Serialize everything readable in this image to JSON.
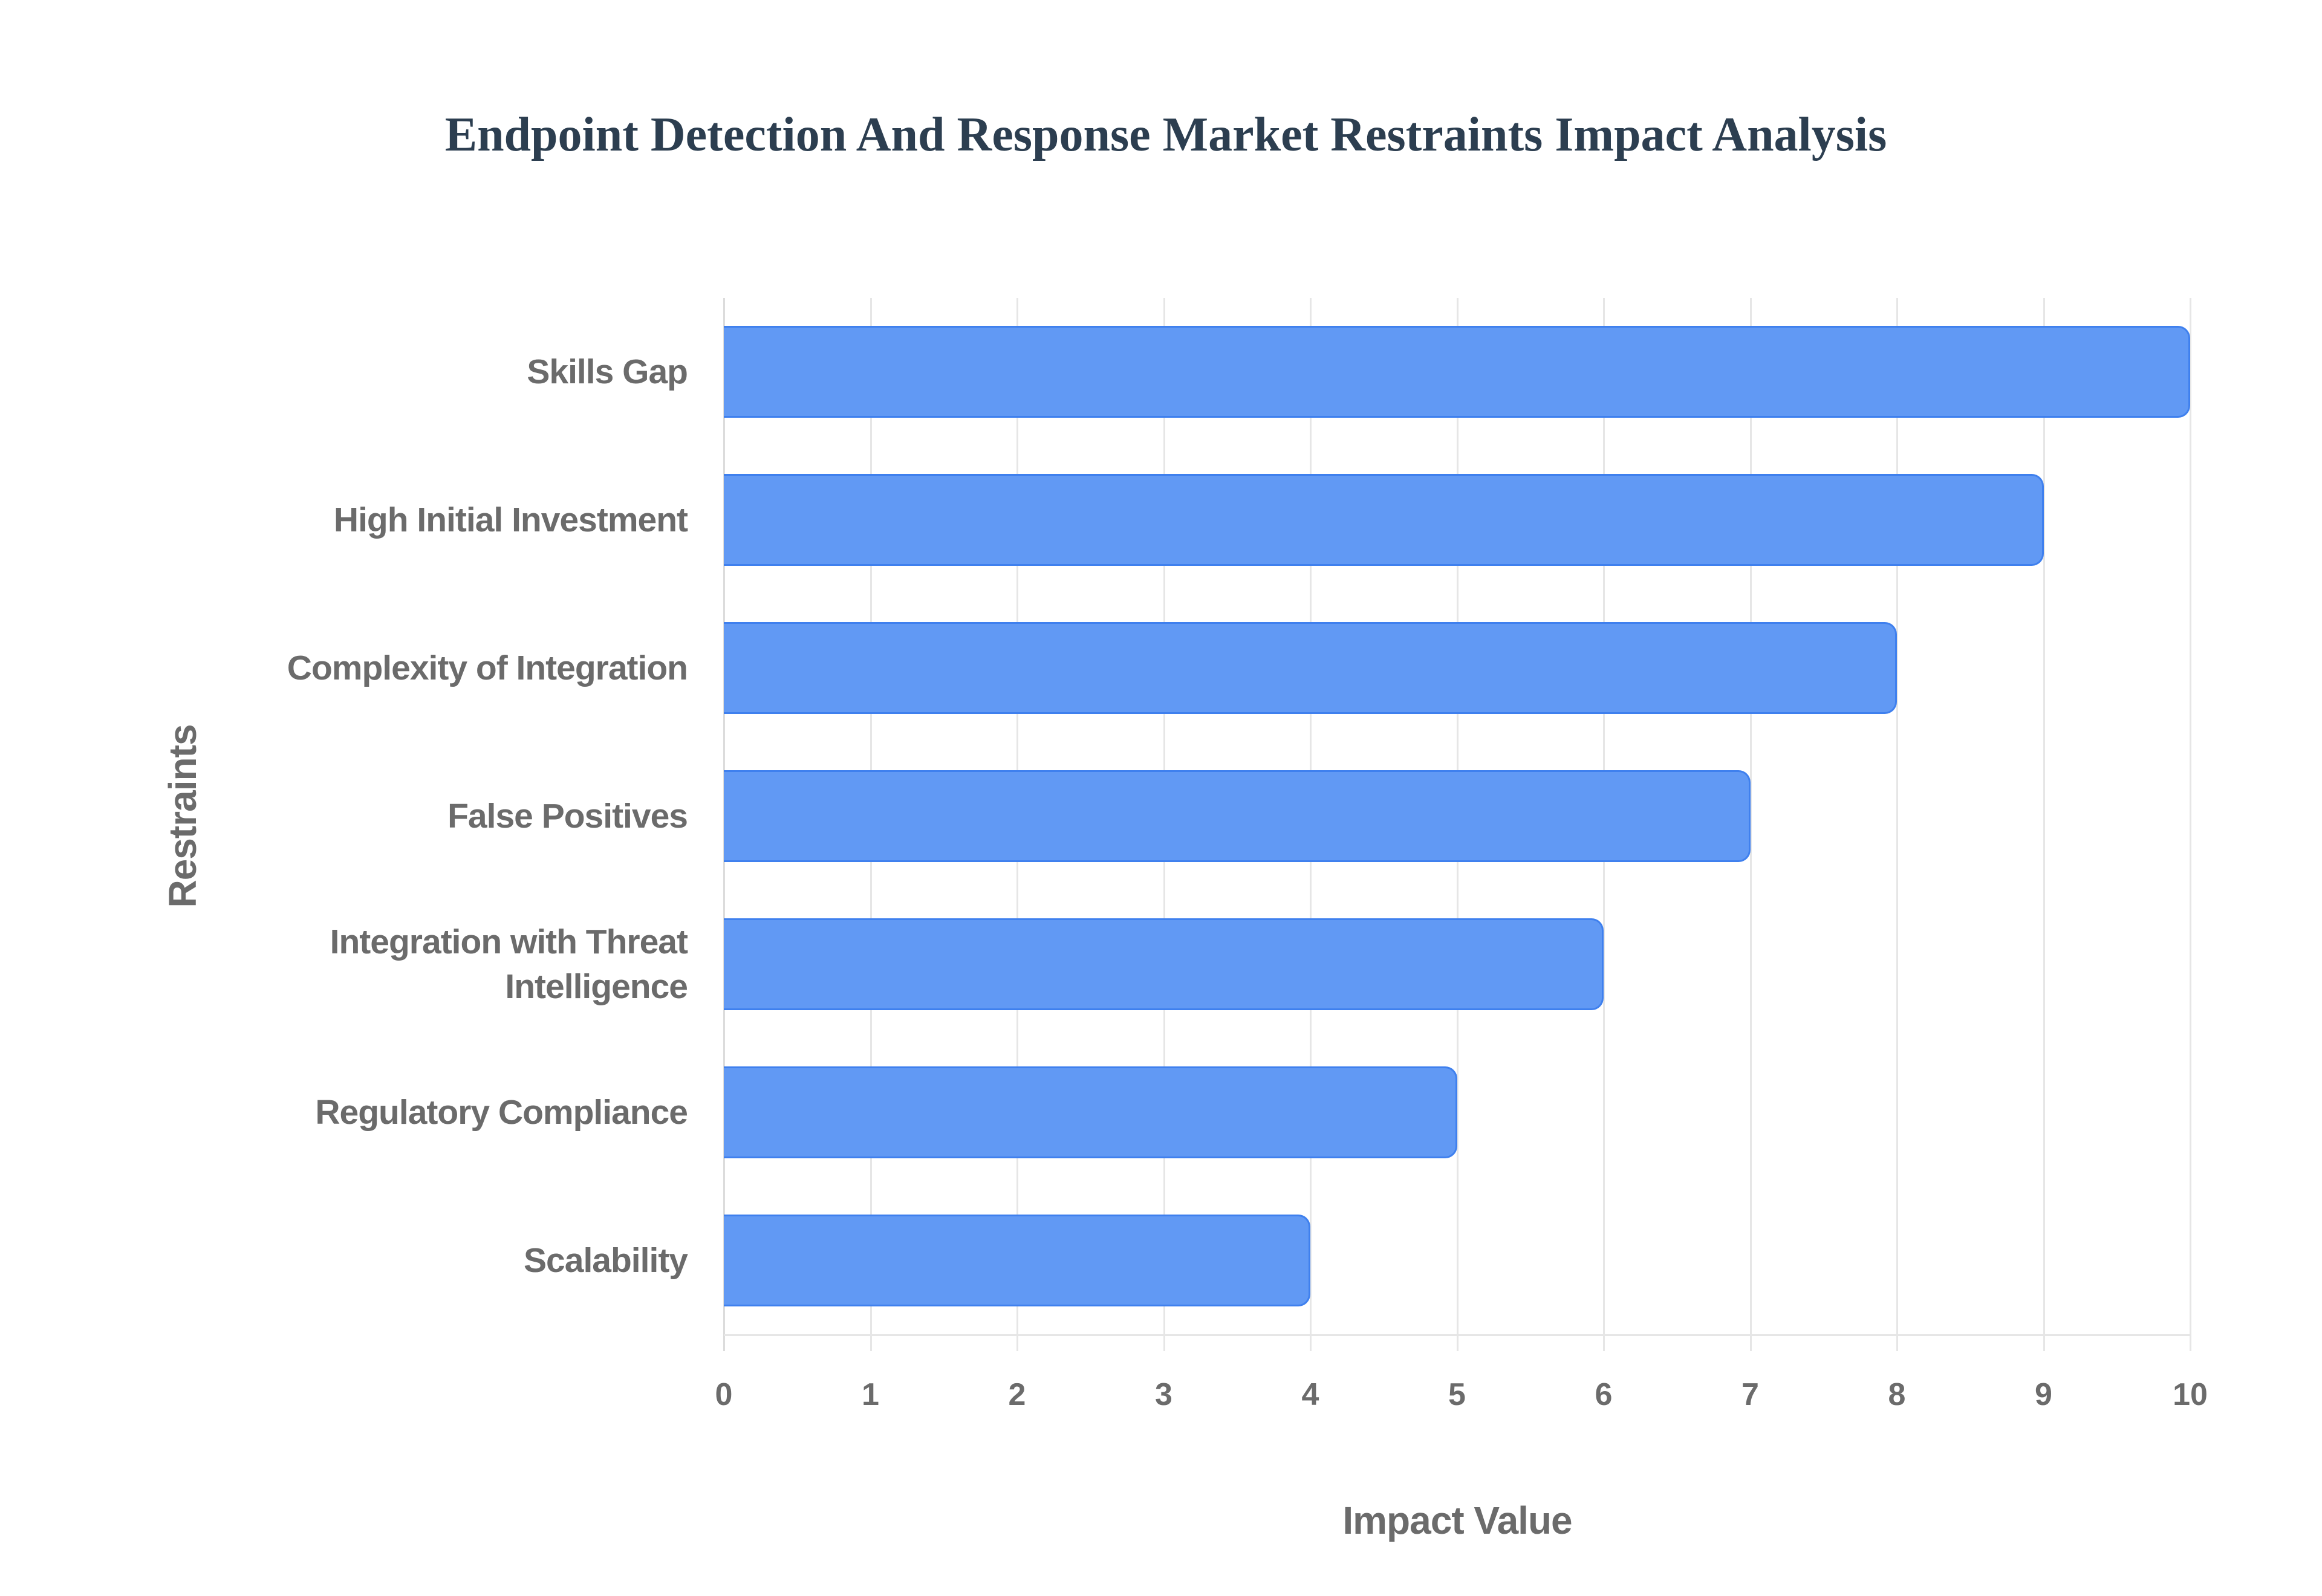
{
  "chart_data": {
    "type": "bar",
    "orientation": "horizontal",
    "title": "Endpoint Detection And Response Market Restraints Impact Analysis",
    "xlabel": "Impact Value",
    "ylabel": "Restraints",
    "categories": [
      "Skills Gap",
      "High Initial Investment",
      "Complexity of Integration",
      "False Positives",
      "Integration with Threat Intelligence",
      "Regulatory Compliance",
      "Scalability"
    ],
    "category_label_lines": [
      [
        "Skills Gap"
      ],
      [
        "High Initial Investment"
      ],
      [
        "Complexity of Integration"
      ],
      [
        "False Positives"
      ],
      [
        "Integration with Threat",
        "Intelligence"
      ],
      [
        "Regulatory Compliance"
      ],
      [
        "Scalability"
      ]
    ],
    "values": [
      10,
      9,
      8,
      7,
      6,
      5,
      4
    ],
    "xlim": [
      0,
      10
    ],
    "xticks": [
      "0",
      "1",
      "2",
      "3",
      "4",
      "5",
      "6",
      "7",
      "8",
      "9",
      "10"
    ],
    "grid": {
      "vertical": true,
      "horizontal": false
    },
    "legend": null,
    "colors": {
      "bar_fill": "#6199f4",
      "bar_border": "#3f80ee",
      "title": "#2c3e50",
      "axis_text": "#6b6b6b",
      "grid": "#e6e6e6"
    }
  }
}
